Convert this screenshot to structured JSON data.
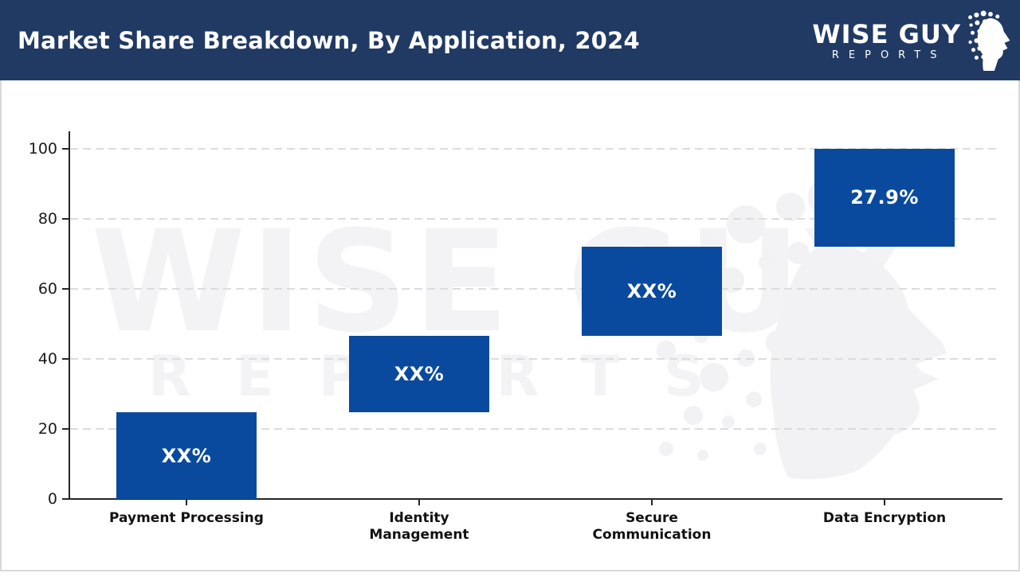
{
  "header": {
    "title": "Market Share Breakdown, By Application, 2024",
    "background_color": "#213A64",
    "logo": {
      "wordmark": "WISE GUY",
      "subtext": "REPORTS"
    }
  },
  "watermark": {
    "wordmark": "WISE GUY",
    "subtext": "REPORTS"
  },
  "chart_data": {
    "type": "waterfall-bar",
    "title": "Market Share Breakdown, By Application, 2024",
    "categories": [
      "Payment Processing",
      "Identity Management",
      "Secure Communication",
      "Data Encryption"
    ],
    "category_lines": [
      [
        "Payment Processing"
      ],
      [
        "Identity",
        "Management"
      ],
      [
        "Secure",
        "Communication"
      ],
      [
        "Data Encryption"
      ]
    ],
    "segments": [
      {
        "category": "Payment Processing",
        "start": 0,
        "end": 24.7,
        "value": 24.7,
        "label": "XX%"
      },
      {
        "category": "Identity Management",
        "start": 24.7,
        "end": 46.6,
        "value": 21.9,
        "label": "XX%"
      },
      {
        "category": "Secure Communication",
        "start": 46.6,
        "end": 72.1,
        "value": 25.5,
        "label": "XX%"
      },
      {
        "category": "Data Encryption",
        "start": 72.1,
        "end": 100,
        "value": 27.9,
        "label": "27.9%"
      }
    ],
    "ylim": [
      0,
      100
    ],
    "yticks": [
      0,
      20,
      40,
      60,
      80,
      100
    ],
    "xlabel": "",
    "ylabel": "",
    "grid": {
      "orientation": "horizontal",
      "style": "dashed",
      "color": "#dcdcdc"
    },
    "legend": null,
    "bar_color": "#0A4A9E",
    "bar_label_color": "#ffffff",
    "axis_color": "#262626"
  }
}
